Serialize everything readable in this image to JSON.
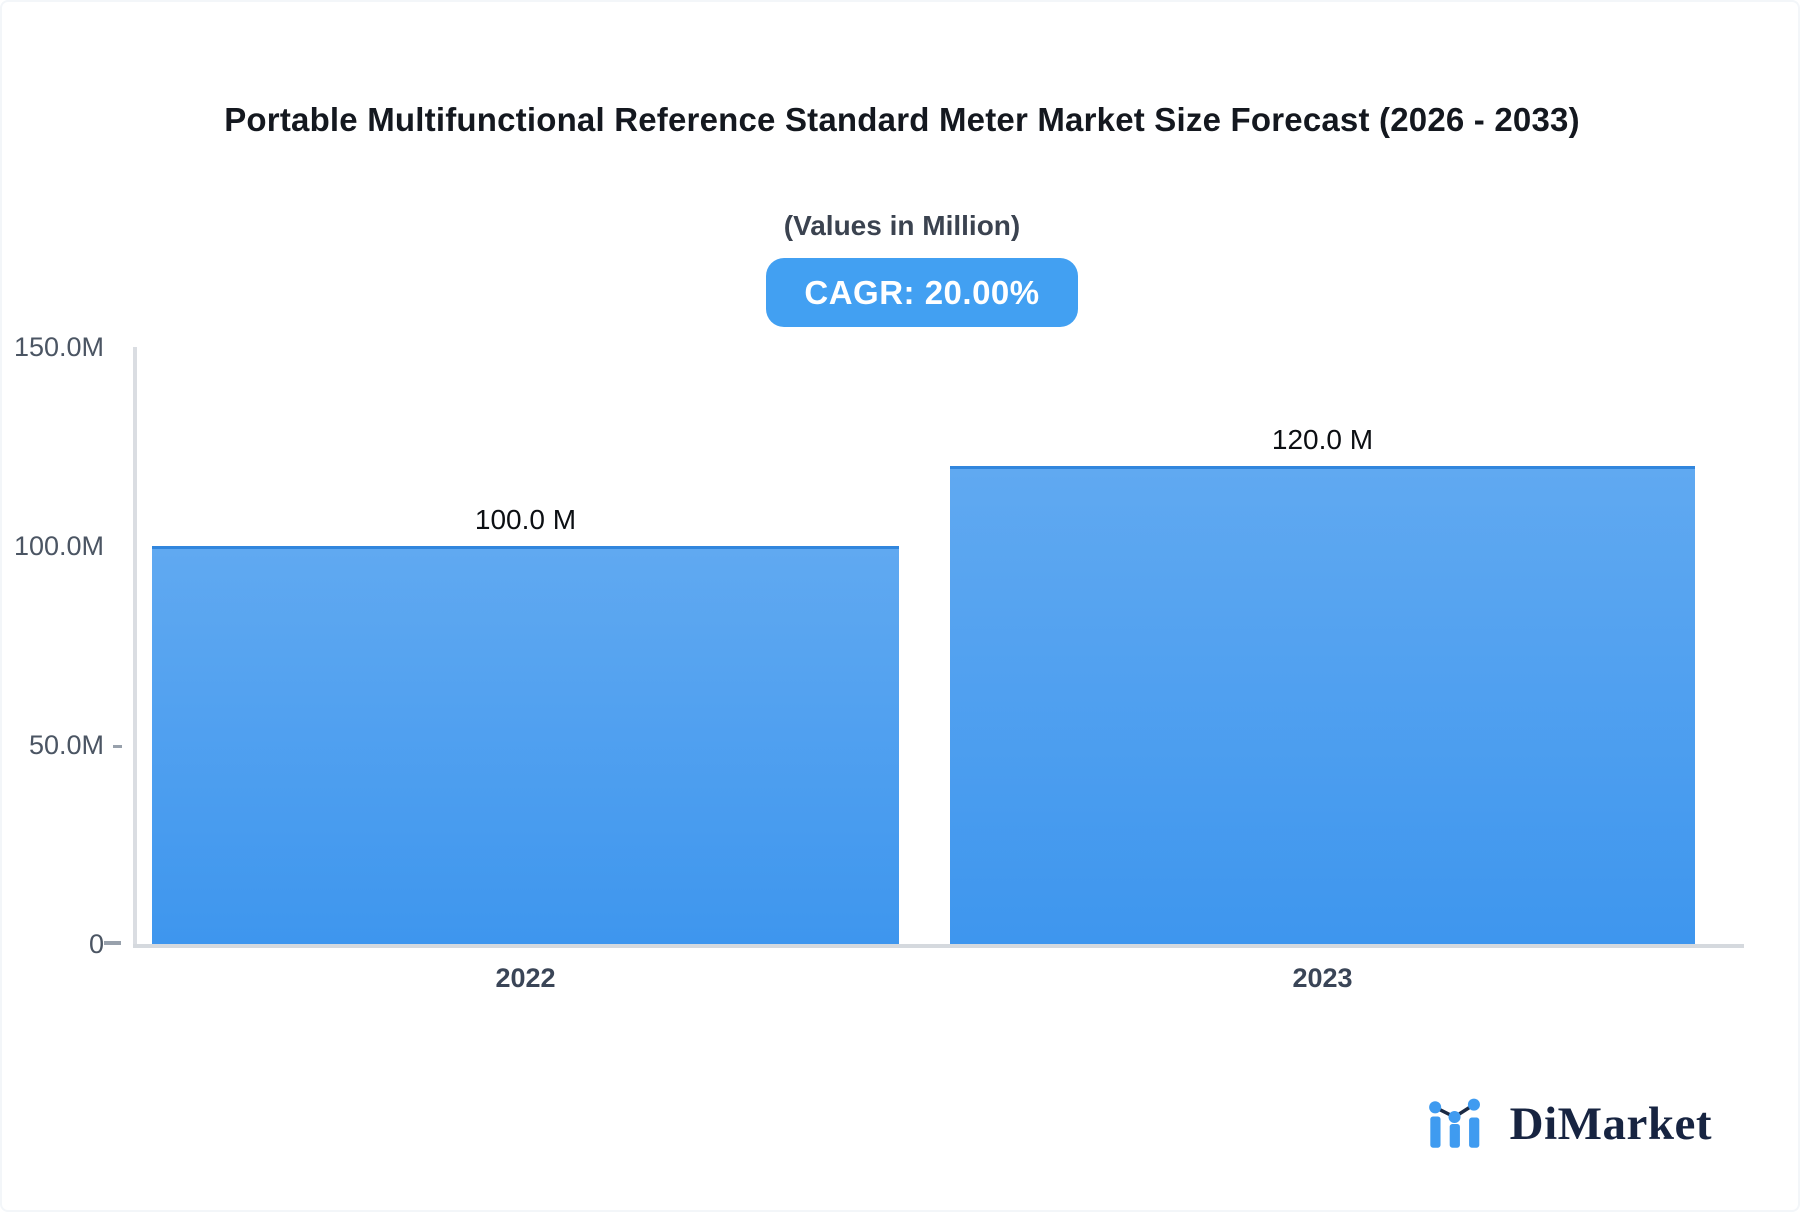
{
  "header": {
    "cagr_badge_color": "#42a0f2"
  },
  "chart_data": {
    "type": "bar",
    "title": "Portable Multifunctional Reference Standard Meter Market Size Forecast (2026 - 2033)",
    "subtitle": "(Values in Million)",
    "cagr_label": "CAGR: 20.00%",
    "categories": [
      "2022",
      "2023"
    ],
    "values": [
      100.0,
      120.0
    ],
    "value_labels": [
      "100.0 M",
      "120.0 M"
    ],
    "unit": "Million",
    "ylim": [
      0,
      150
    ],
    "ytick_labels": [
      "150.0M",
      "100.0M",
      "50.0M",
      "0"
    ],
    "ytick_values": [
      150,
      100,
      50,
      0
    ],
    "grid": false,
    "legend_position": "none",
    "bar_gradient_top": "#60a9f1",
    "bar_gradient_bottom": "#3e96ee",
    "bar_top_border": "#3186dd",
    "axis_color": "#d5d9de"
  },
  "logo": {
    "text": "DiMarket",
    "icon_blue": "#3f9bf0",
    "navy": "#172441"
  }
}
